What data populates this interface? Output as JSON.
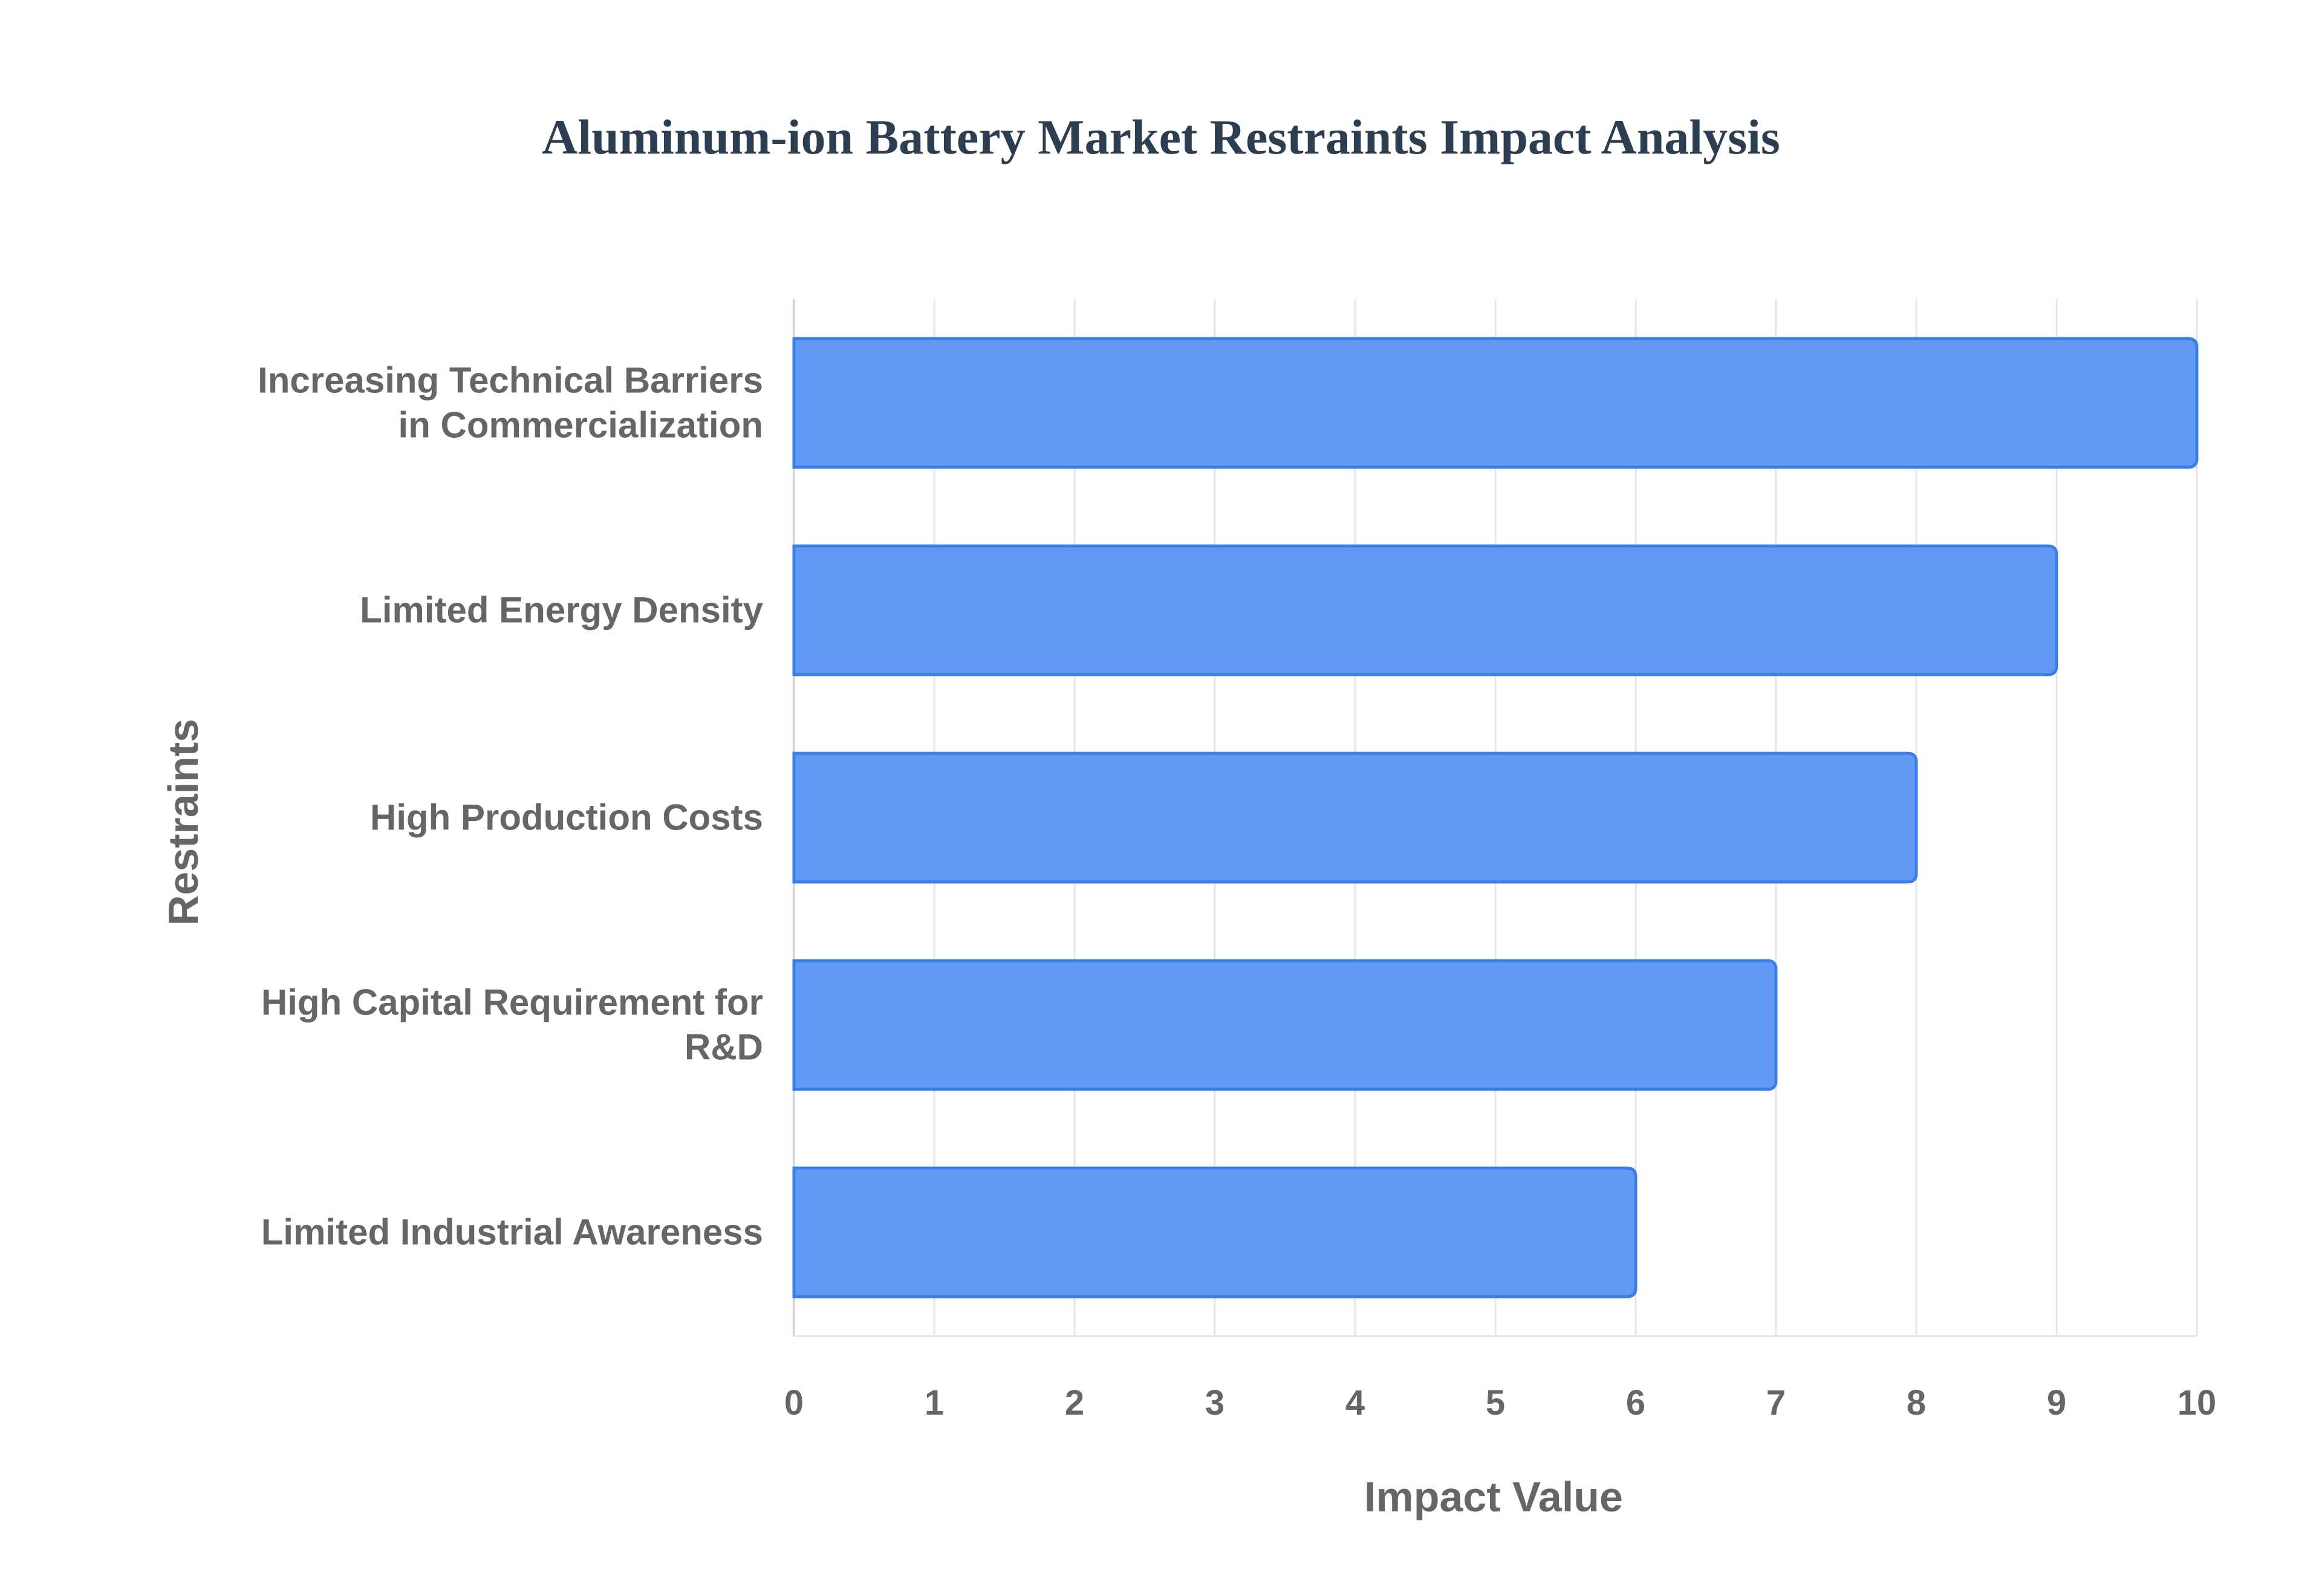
{
  "chart_data": {
    "type": "bar",
    "orientation": "horizontal",
    "title": "Aluminum-ion Battery Market Restraints Impact Analysis",
    "xlabel": "Impact Value",
    "ylabel": "Restraints",
    "categories": [
      "Increasing Technical Barriers in Commercialization",
      "Limited Energy Density",
      "High Production Costs",
      "High Capital Requirement for R&D",
      "Limited Industrial Awareness"
    ],
    "category_lines": [
      [
        "Increasing Technical Barriers",
        "in Commercialization"
      ],
      [
        "Limited Energy Density"
      ],
      [
        "High Production Costs"
      ],
      [
        "High Capital Requirement for",
        "R&D"
      ],
      [
        "Limited Industrial Awareness"
      ]
    ],
    "values": [
      10,
      9,
      8,
      7,
      6
    ],
    "xlim": [
      0,
      10
    ],
    "xticks": [
      "0",
      "1",
      "2",
      "3",
      "4",
      "5",
      "6",
      "7",
      "8",
      "9",
      "10"
    ],
    "grid": true,
    "legend": "none",
    "colors": {
      "bar_fill": "#6199f5",
      "bar_stroke": "#3b7de9",
      "grid": "#e5e5e5",
      "title": "#2c3e50",
      "text": "#666666"
    }
  }
}
